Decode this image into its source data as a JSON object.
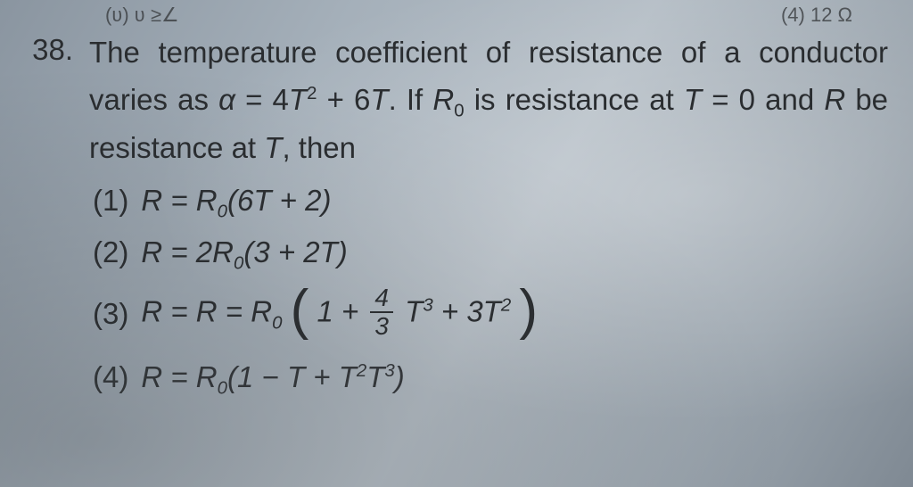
{
  "cutoff": {
    "left": "(ʋ) ʋ ≥∠",
    "right": "(4)  12 Ω"
  },
  "question": {
    "number": "38.",
    "stem_html": "The temperature coefficient of resistance of a conductor varies as <i>α</i> = 4<i>T</i><span class=\"sup\">2</span> + 6<i>T</i>. If <i>R</i><span class=\"sub\">0</span> is resistance at <i>T</i> = 0 and <i>R</i> be resistance at <i>T</i>, then"
  },
  "options": {
    "o1": {
      "label": "(1)",
      "expr_html": "R = R<span class=\"sub\">0</span>(6T + 2)"
    },
    "o2": {
      "label": "(2)",
      "expr_html": "R = 2R<span class=\"sub\">0</span>(3 + 2T)"
    },
    "o3": {
      "label": "(3)",
      "lead": "R = R = R",
      "sub0": "0",
      "frac_num": "4",
      "frac_den": "3",
      "pre": "1 +",
      "mid": "T",
      "mid_sup": "3",
      "tail": " + 3T",
      "tail_sup": "2"
    },
    "o4": {
      "label": "(4)",
      "expr_html": "R = R<span class=\"sub\">0</span>(1 − T + T<span class=\"sup\">2</span>T<span class=\"sup\">3</span>)"
    }
  }
}
